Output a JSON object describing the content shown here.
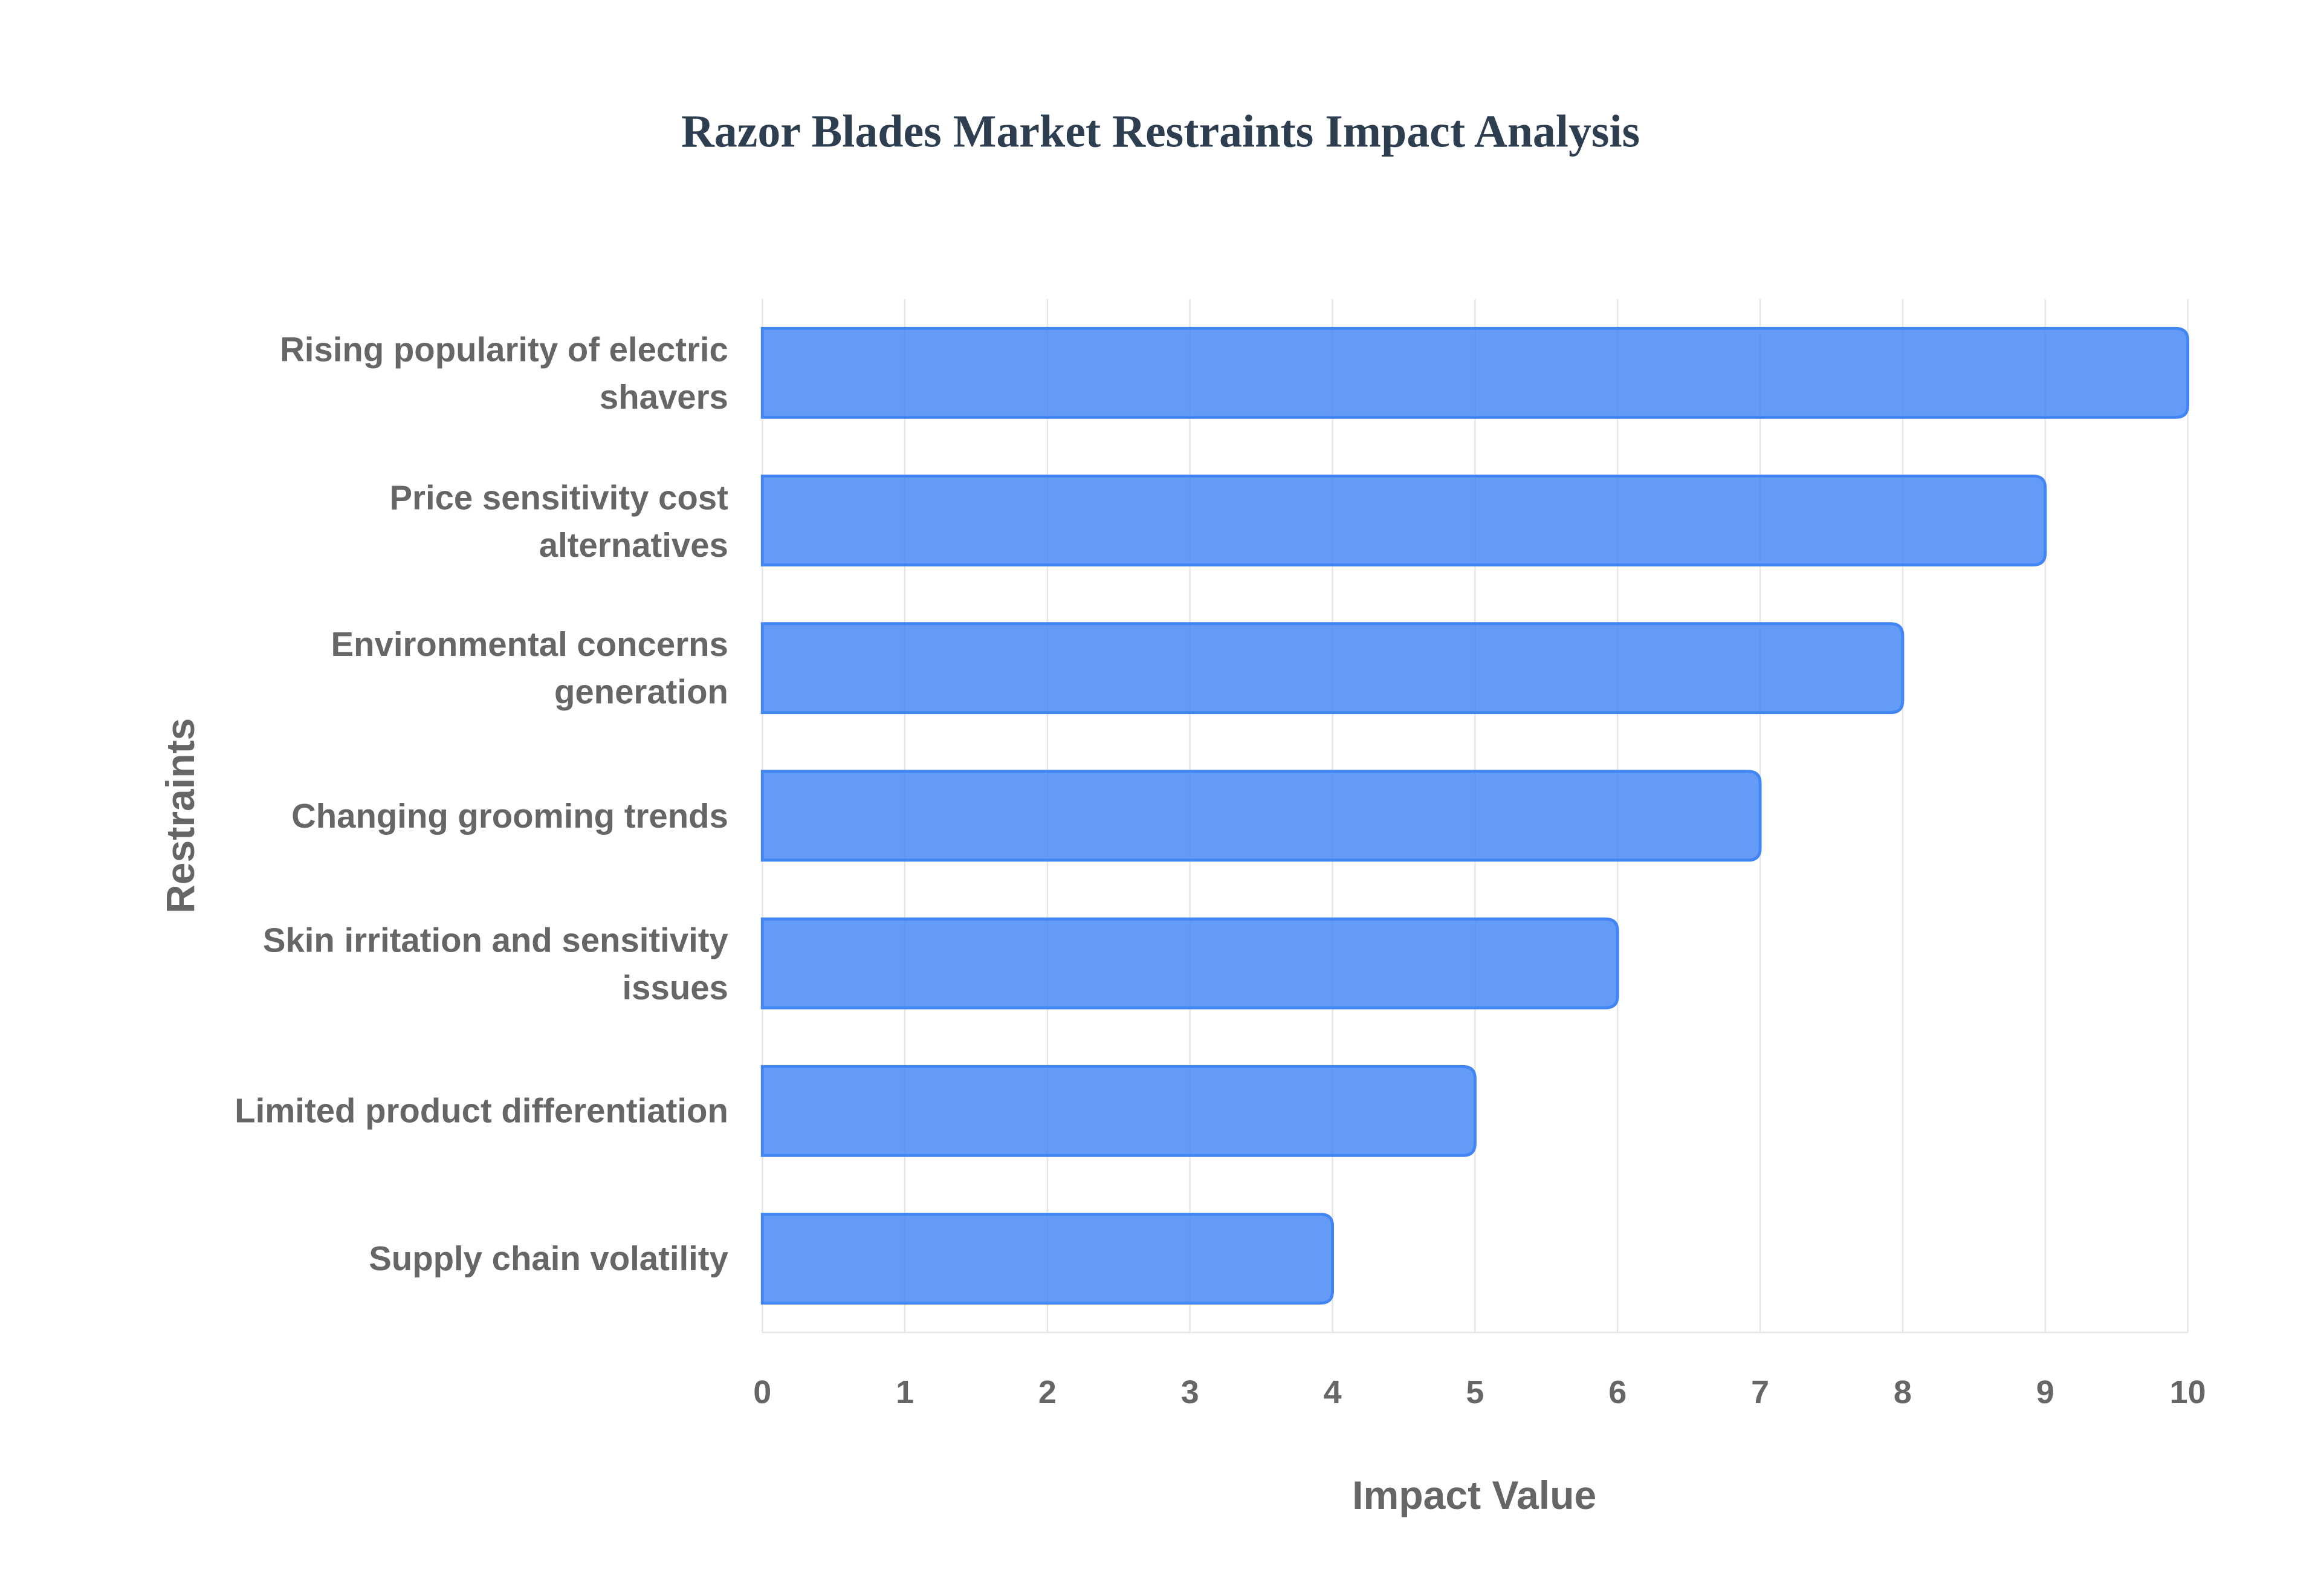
{
  "chart_data": {
    "type": "bar",
    "orientation": "horizontal",
    "title": "Razor Blades Market Restraints Impact Analysis",
    "xlabel": "Impact Value",
    "ylabel": "Restraints",
    "categories": [
      "Rising popularity of electric shavers",
      "Price sensitivity cost alternatives",
      "Environmental concerns generation",
      "Changing grooming trends",
      "Skin irritation and sensitivity issues",
      "Limited product differentiation",
      "Supply chain volatility"
    ],
    "values": [
      10,
      9,
      8,
      7,
      6,
      5,
      4
    ],
    "color": "#4285f4",
    "xlim": [
      0,
      10
    ],
    "xticks": [
      0,
      1,
      2,
      3,
      4,
      5,
      6,
      7,
      8,
      9,
      10
    ],
    "grid": true
  }
}
